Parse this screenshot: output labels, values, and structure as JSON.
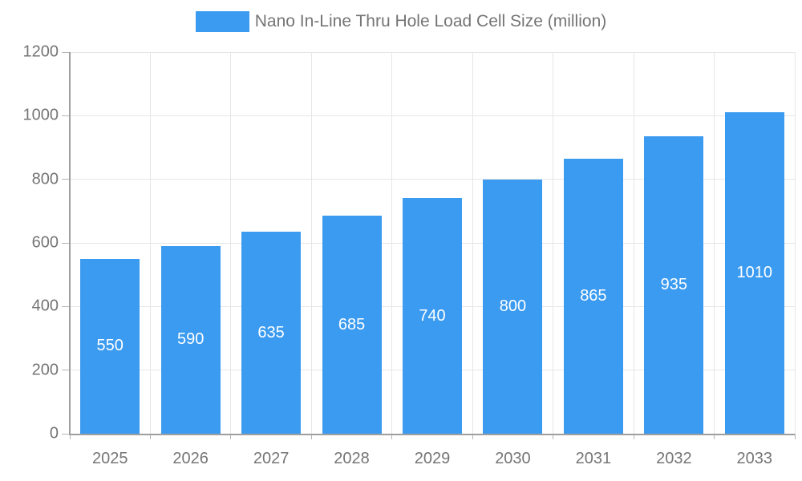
{
  "legend": {
    "label": "Nano In-Line Thru Hole Load Cell Size (million)"
  },
  "chart_data": {
    "type": "bar",
    "title": "Nano In-Line Thru Hole Load Cell Size (million)",
    "series_name": "Nano In-Line Thru Hole Load Cell Size (million)",
    "categories": [
      "2025",
      "2026",
      "2027",
      "2028",
      "2029",
      "2030",
      "2031",
      "2032",
      "2033"
    ],
    "values": [
      550,
      590,
      635,
      685,
      740,
      800,
      865,
      935,
      1010
    ],
    "bar_labels": [
      "550",
      "590",
      "635",
      "685",
      "740",
      "800",
      "865",
      "935",
      "1010"
    ],
    "xlabel": "",
    "ylabel": "",
    "ylim": [
      0,
      1200
    ],
    "ytick_step": 200,
    "y_tick_labels": [
      "0",
      "200",
      "400",
      "600",
      "800",
      "1000",
      "1200"
    ],
    "grid": true,
    "legend_position": "top",
    "colors": {
      "bar": "#3b9bf0",
      "bar_value_text": "#ffffff",
      "axis_text": "#757575",
      "grid_line": "#e6e6e6",
      "axis_line": "#9e9e9e"
    }
  }
}
